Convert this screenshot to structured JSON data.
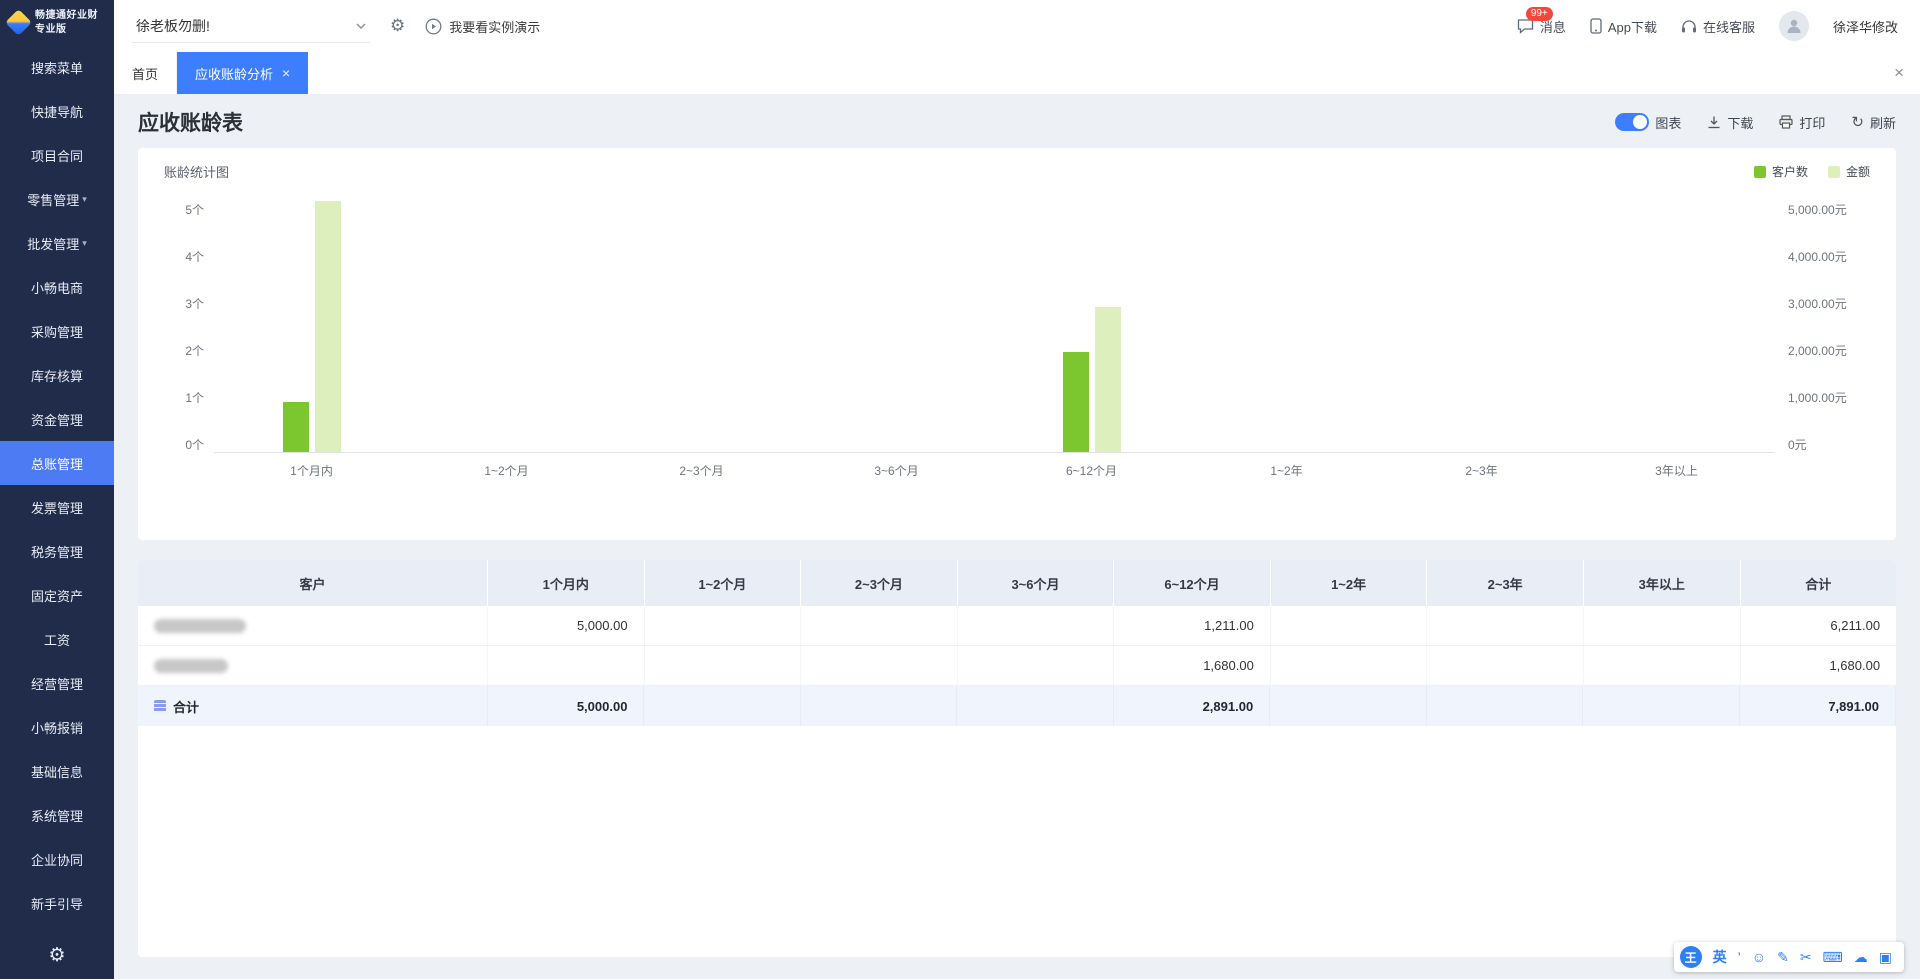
{
  "sidebar": {
    "logo_title": "畅捷通好业财",
    "logo_subtitle": "专业版",
    "items": [
      {
        "label": "搜索菜单"
      },
      {
        "label": "快捷导航"
      },
      {
        "label": "项目合同"
      },
      {
        "label": "零售管理",
        "arrow": true
      },
      {
        "label": "批发管理",
        "arrow": true
      },
      {
        "label": "小畅电商"
      },
      {
        "label": "采购管理"
      },
      {
        "label": "库存核算"
      },
      {
        "label": "资金管理"
      },
      {
        "label": "总账管理",
        "active": true
      },
      {
        "label": "发票管理"
      },
      {
        "label": "税务管理"
      },
      {
        "label": "固定资产"
      },
      {
        "label": "工资"
      },
      {
        "label": "经营管理"
      },
      {
        "label": "小畅报销"
      },
      {
        "label": "基础信息"
      },
      {
        "label": "系统管理"
      },
      {
        "label": "企业协同"
      },
      {
        "label": "新手引导"
      }
    ]
  },
  "topbar": {
    "company_selector": "徐老板勿删!",
    "demo_link": "我要看实例演示",
    "messages_label": "消息",
    "messages_badge": "99+",
    "app_download_label": "App下载",
    "support_label": "在线客服",
    "username": "徐泽华修改"
  },
  "tabs": [
    {
      "label": "首页",
      "active": false
    },
    {
      "label": "应收账龄分析",
      "active": true,
      "closable": true
    }
  ],
  "page": {
    "title": "应收账龄表",
    "toggle_label": "图表",
    "toggle_state": "on",
    "download_label": "下载",
    "print_label": "打印",
    "refresh_label": "刷新"
  },
  "chart_data": {
    "type": "bar",
    "title": "账龄统计图",
    "categories": [
      "1个月内",
      "1~2个月",
      "2~3个月",
      "3~6个月",
      "6~12个月",
      "1~2年",
      "2~3年",
      "3年以上"
    ],
    "series": [
      {
        "name": "客户数",
        "axis": "left",
        "color": "#7cc62f",
        "values": [
          1,
          0,
          0,
          0,
          2,
          0,
          0,
          0
        ]
      },
      {
        "name": "金额",
        "axis": "right",
        "color": "#ddefbd",
        "values": [
          5000,
          0,
          0,
          0,
          2891,
          0,
          0,
          0
        ]
      }
    ],
    "left_axis": {
      "ticks": [
        "0个",
        "1个",
        "2个",
        "3个",
        "4个",
        "5个"
      ],
      "max": 5
    },
    "right_axis": {
      "ticks": [
        "0元",
        "1,000.00元",
        "2,000.00元",
        "3,000.00元",
        "4,000.00元",
        "5,000.00元"
      ],
      "max": 5000
    },
    "legend_position": "top-right",
    "grid": false
  },
  "table": {
    "headers": [
      "客户",
      "1个月内",
      "1~2个月",
      "2~3个月",
      "3~6个月",
      "6~12个月",
      "1~2年",
      "2~3年",
      "3年以上",
      "合计"
    ],
    "rows": [
      {
        "customer_redacted": true,
        "values": [
          "5,000.00",
          "",
          "",
          "",
          "1,211.00",
          "",
          "",
          "",
          "6,211.00"
        ]
      },
      {
        "customer_redacted": true,
        "values": [
          "",
          "",
          "",
          "",
          "1,680.00",
          "",
          "",
          "",
          "1,680.00"
        ]
      }
    ],
    "total_row": {
      "label": "合计",
      "values": [
        "5,000.00",
        "",
        "",
        "",
        "2,891.00",
        "",
        "",
        "",
        "7,891.00"
      ]
    }
  },
  "ime": {
    "initial": "王",
    "lang": "英",
    "icons": [
      {
        "name": "ime-separator-icon",
        "glyph": "’"
      },
      {
        "name": "ime-emoji-icon",
        "glyph": "☺"
      },
      {
        "name": "ime-pen-icon",
        "glyph": "✎"
      },
      {
        "name": "ime-scissors-icon",
        "glyph": "✂"
      },
      {
        "name": "ime-keyboard-icon",
        "glyph": "⌨"
      },
      {
        "name": "ime-cloud-icon",
        "glyph": "☁"
      },
      {
        "name": "ime-toolbox-icon",
        "glyph": "▣"
      }
    ]
  }
}
